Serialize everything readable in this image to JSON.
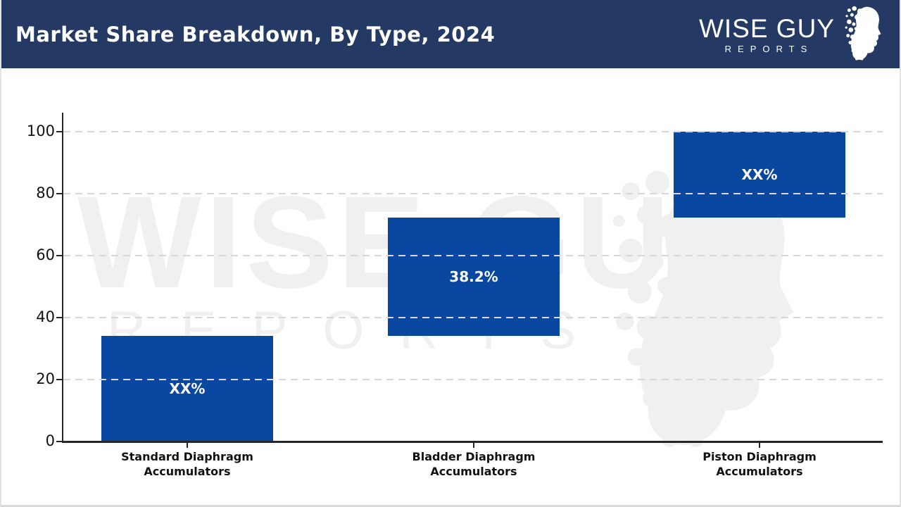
{
  "header": {
    "title": "Market Share Breakdown, By Type, 2024",
    "logo_primary": "WISE GUY",
    "logo_secondary": "REPORTS",
    "bg_color": "#243a64"
  },
  "watermark": {
    "line1": "WISE GUY",
    "line2": "REPORTS",
    "color": "#f0f0f0"
  },
  "chart_data": {
    "type": "bar",
    "subtype": "floating-waterfall",
    "title": "Market Share Breakdown, By Type, 2024",
    "categories": [
      "Standard Diaphragm Accumulators",
      "Bladder Diaphragm Accumulators",
      "Piston Diaphragm Accumulators"
    ],
    "categories_lines": [
      [
        "Standard Diaphragm",
        "Accumulators"
      ],
      [
        "Bladder Diaphragm",
        "Accumulators"
      ],
      [
        "Piston Diaphragm",
        "Accumulators"
      ]
    ],
    "segments": [
      {
        "category": "Standard Diaphragm Accumulators",
        "start": 0,
        "end": 34,
        "value_label": "XX%"
      },
      {
        "category": "Bladder Diaphragm Accumulators",
        "start": 34,
        "end": 72.2,
        "value_label": "38.2%"
      },
      {
        "category": "Piston Diaphragm Accumulators",
        "start": 72.2,
        "end": 100,
        "value_label": "XX%"
      }
    ],
    "ylim": [
      0,
      100
    ],
    "yticks": [
      0,
      20,
      40,
      60,
      80,
      100
    ],
    "grid": {
      "horizontal": true,
      "style": "dashed",
      "color": "#d7d7d7"
    },
    "legend": "none",
    "bar_color": "#0a47a0",
    "bar_label_color": "#ffffff",
    "axis_color": "#262626",
    "tick_label_color": "#111111"
  }
}
